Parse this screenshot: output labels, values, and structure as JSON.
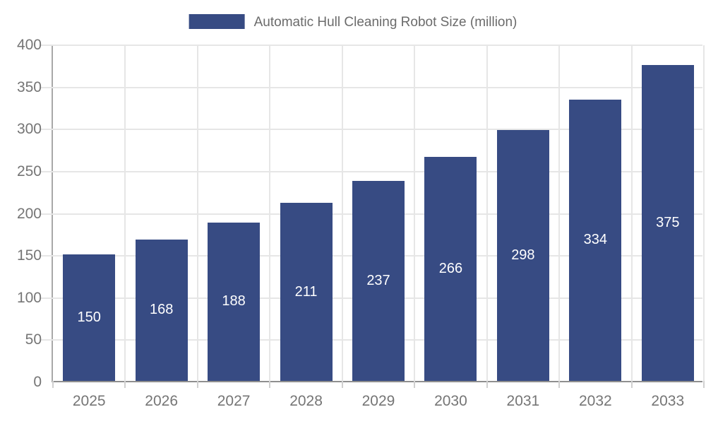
{
  "chart_data": {
    "type": "bar",
    "title": "Automatic Hull Cleaning Robot Size (million)",
    "categories": [
      "2025",
      "2026",
      "2027",
      "2028",
      "2029",
      "2030",
      "2031",
      "2032",
      "2033"
    ],
    "series": [
      {
        "name": "Automatic Hull Cleaning Robot Size (million)",
        "values": [
          150,
          168,
          188,
          211,
          237,
          266,
          298,
          334,
          375
        ]
      }
    ],
    "value_labels_shown": true,
    "xlabel": "",
    "ylabel": "",
    "ylim": [
      0,
      400
    ],
    "y_ticks": [
      0,
      50,
      100,
      150,
      200,
      250,
      300,
      350,
      400
    ],
    "grid": true,
    "legend_position": "top-center",
    "colors": {
      "bar": "#374b83",
      "value_label": "#ffffff",
      "gridline": "#e6e6e6",
      "axis_line": "#8f8f8f",
      "tick_text": "#757575",
      "legend_text": "#6b6b6b",
      "background": "#ffffff"
    }
  }
}
